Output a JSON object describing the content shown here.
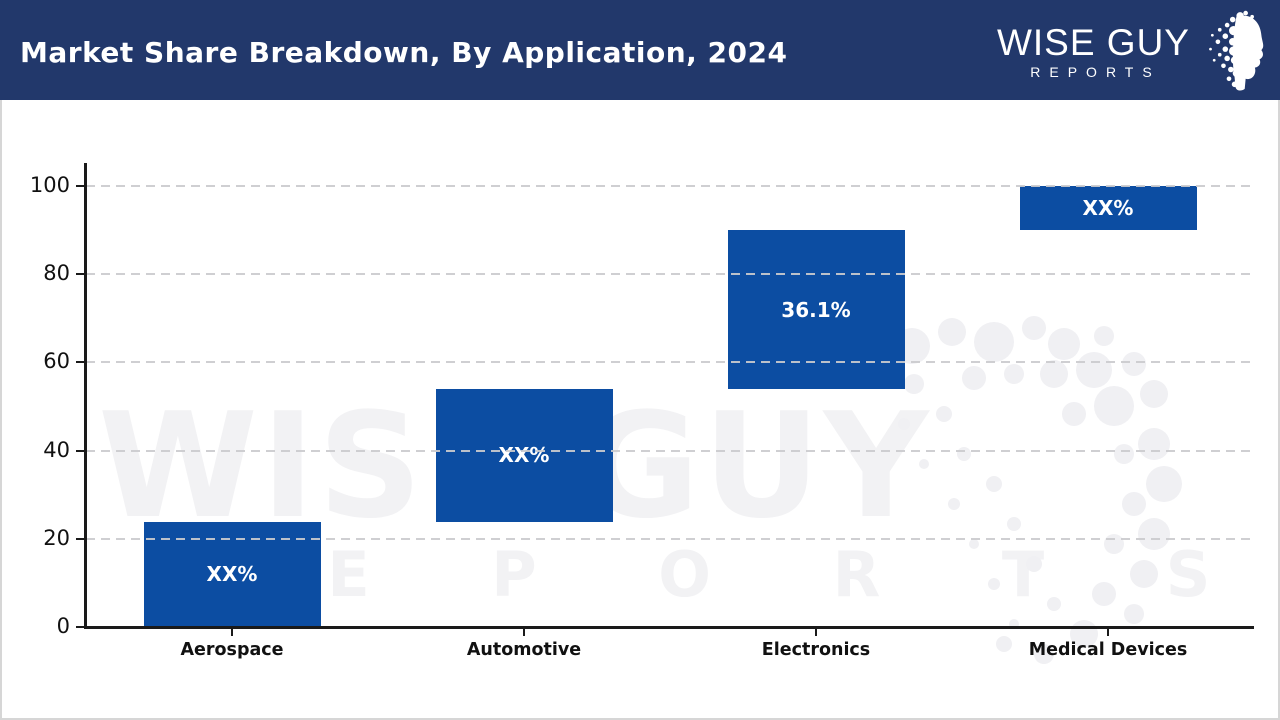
{
  "header": {
    "title": "Market Share Breakdown, By Application, 2024",
    "logo_line1": "WISE GUY",
    "logo_line2": "REPORTS"
  },
  "watermark": {
    "line1": "WISE GUY",
    "line2": "R E P O R T S"
  },
  "colors": {
    "header_bg": "#22386b",
    "bar": "#0c4da2",
    "axis": "#1a1a1a",
    "grid_dash": "#cbcbce",
    "bar_label": "#ffffff",
    "watermark": "#f2f2f4"
  },
  "chart_data": {
    "type": "bar",
    "subtype": "floating-waterfall-columns",
    "title": "Market Share Breakdown, By Application, 2024",
    "categories": [
      "Aerospace",
      "Automotive",
      "Electronics",
      "Medical Devices"
    ],
    "bars": [
      {
        "category": "Aerospace",
        "from": 0,
        "to": 23.9,
        "label": "XX%"
      },
      {
        "category": "Automotive",
        "from": 23.9,
        "to": 53.9,
        "label": "XX%"
      },
      {
        "category": "Electronics",
        "from": 53.9,
        "to": 90.0,
        "label": "36.1%"
      },
      {
        "category": "Medical Devices",
        "from": 90.0,
        "to": 100.0,
        "label": "XX%"
      }
    ],
    "xlabel": "",
    "ylabel": "",
    "yticks": [
      0,
      20,
      40,
      60,
      80,
      100
    ],
    "ylim": [
      0,
      105.2
    ],
    "grid": "horizontal-dashed",
    "legend": "none",
    "bar_color": "#0c4da2",
    "bar_label_color": "#ffffff"
  }
}
